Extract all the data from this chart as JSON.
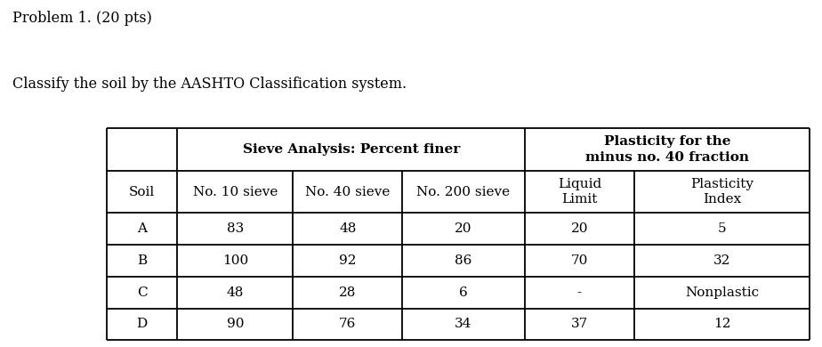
{
  "title_line1": "Problem 1. (20 pts)",
  "title_line2": "Classify the soil by the AASHTO Classification system.",
  "rows": [
    [
      "A",
      "83",
      "48",
      "20",
      "20",
      "5"
    ],
    [
      "B",
      "100",
      "92",
      "86",
      "70",
      "32"
    ],
    [
      "C",
      "48",
      "28",
      "6",
      "-",
      "Nonplastic"
    ],
    [
      "D",
      "90",
      "76",
      "34",
      "37",
      "12"
    ]
  ],
  "bg_color": "#ffffff",
  "text_color": "#000000",
  "line_color": "#000000",
  "font_size_title1": 11.5,
  "font_size_title2": 11.5,
  "font_size_table": 11
}
